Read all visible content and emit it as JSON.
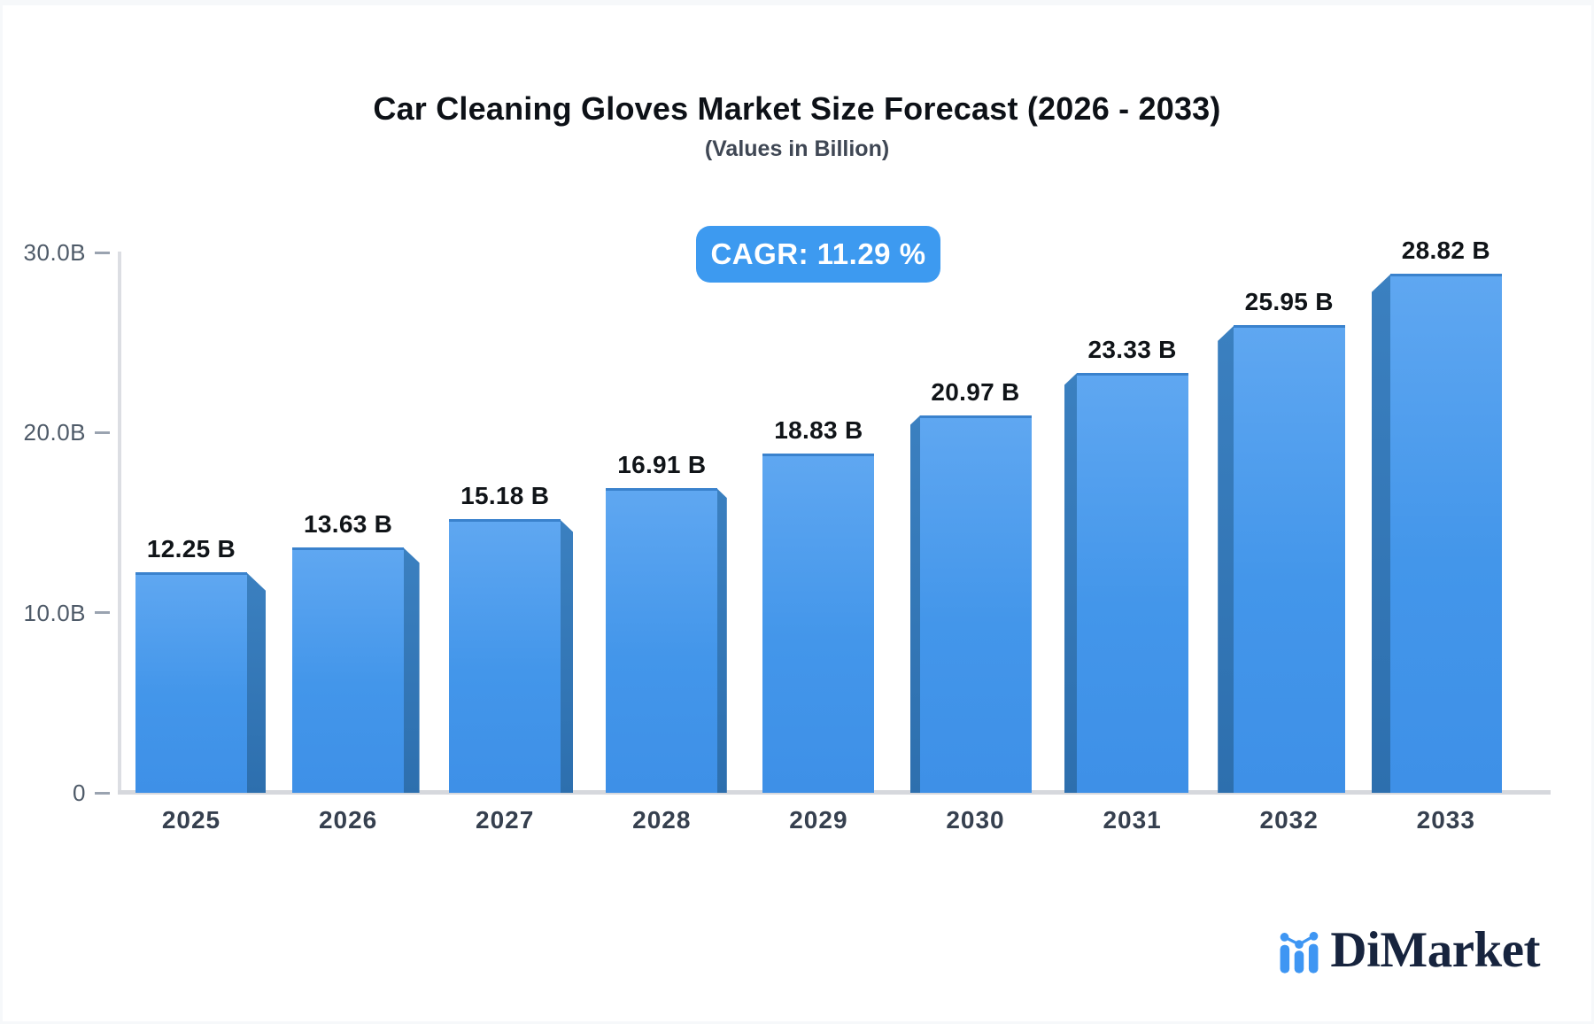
{
  "header": {
    "title": "Car Cleaning Gloves Market Size Forecast (2026 - 2033)",
    "subtitle": "(Values in Billion)",
    "cagr_label": "CAGR: 11.29 %"
  },
  "chart_data": {
    "type": "bar",
    "title": "Car Cleaning Gloves Market Size Forecast (2026 - 2033)",
    "subtitle": "(Values in Billion)",
    "cagr_percent": 11.29,
    "unit": "Billion",
    "categories": [
      "2025",
      "2026",
      "2027",
      "2028",
      "2029",
      "2030",
      "2031",
      "2032",
      "2033"
    ],
    "values": [
      12.25,
      13.63,
      15.18,
      16.91,
      18.83,
      20.97,
      23.33,
      25.95,
      28.82
    ],
    "value_labels": [
      "12.25 B",
      "13.63 B",
      "15.18 B",
      "16.91 B",
      "18.83 B",
      "20.97 B",
      "23.33 B",
      "25.95 B",
      "28.82 B"
    ],
    "y_ticks": [
      {
        "label": "30.0B",
        "value": 30
      },
      {
        "label": "20.0B",
        "value": 20
      },
      {
        "label": "10.0B",
        "value": 10
      },
      {
        "label": "0",
        "value": 0
      }
    ],
    "ylim": [
      0,
      30
    ],
    "grid": false,
    "legend": false,
    "bar_style": "3d-perspective"
  },
  "footer": {
    "brand": "DiMarket"
  },
  "colors": {
    "accent_badge": "#3d9af0",
    "bar_face_top": "#5fa7f1",
    "bar_face_mid": "#4396ea",
    "bar_face_bottom": "#3e90e7",
    "bar_top_edge": "#3a82cd",
    "bar_side_top": "#3b80c0",
    "bar_side_bottom": "#2d6fae",
    "axis_line": "#dcdee3",
    "baseline": "#d6d8dd",
    "tick": "#9aa3b0",
    "axis_text": "#4e5a68",
    "xlabel_text": "#36404f",
    "value_text": "#101418",
    "logo_blue": "#3e96f3",
    "logo_text": "#17243e"
  }
}
